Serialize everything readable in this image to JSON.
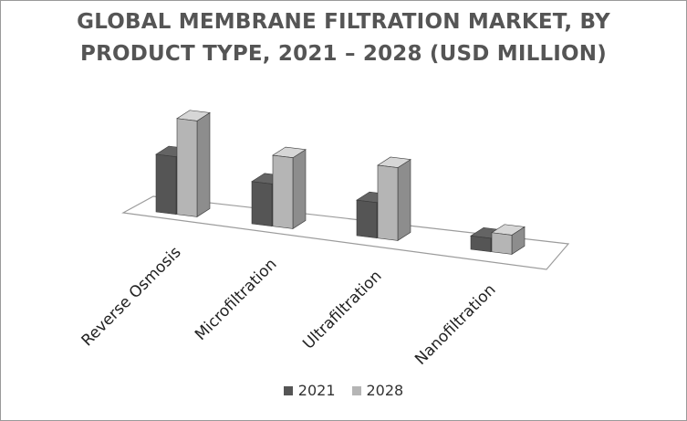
{
  "chart_data": {
    "type": "bar",
    "title": "GLOBAL MEMBRANE FILTRATION MARKET, BY PRODUCT TYPE, 2021 – 2028 (USD MILLION)",
    "title_lines": [
      "GLOBAL MEMBRANE FILTRATION MARKET, BY",
      "PRODUCT TYPE, 2021 – 2028 (USD MILLION)"
    ],
    "categories": [
      "Reverse Osmosis",
      "Microfiltration",
      "Ultrafiltration",
      "Nanofiltration"
    ],
    "series": [
      {
        "name": "2021",
        "values": [
          60,
          44,
          37,
          14
        ],
        "color": "#555555"
      },
      {
        "name": "2028",
        "values": [
          100,
          74,
          76,
          20
        ],
        "color": "#b5b5b5"
      }
    ],
    "ylim": [
      0,
      100
    ],
    "style": "3d-column",
    "axis_values_shown": false,
    "grid": false,
    "legend_position": "bottom"
  }
}
